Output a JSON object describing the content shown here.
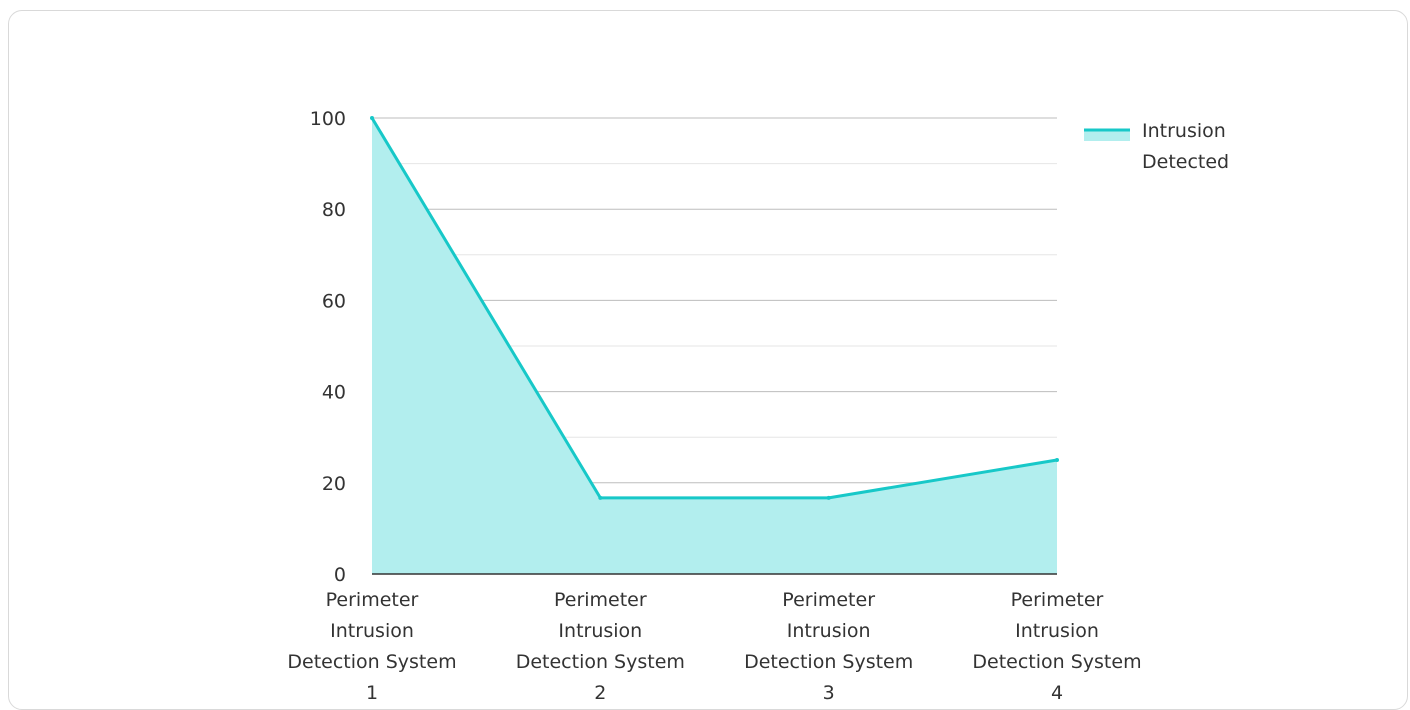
{
  "chart_data": {
    "type": "area",
    "categories": [
      [
        "Perimeter",
        "Intrusion",
        "Detection System",
        "1"
      ],
      [
        "Perimeter",
        "Intrusion",
        "Detection System",
        "2"
      ],
      [
        "Perimeter",
        "Intrusion",
        "Detection System",
        "3"
      ],
      [
        "Perimeter",
        "Intrusion",
        "Detection System",
        "4"
      ]
    ],
    "series": [
      {
        "name": "Intrusion Detected",
        "name_lines": [
          "Intrusion",
          "Detected"
        ],
        "values": [
          100,
          16.7,
          16.7,
          25
        ],
        "color": "#17c8c8",
        "fill": "#b2eeee"
      }
    ],
    "ylim": [
      0,
      100
    ],
    "yticks": [
      "0",
      "20",
      "40",
      "60",
      "80",
      "100"
    ],
    "grid": true,
    "legend": "top-right"
  }
}
